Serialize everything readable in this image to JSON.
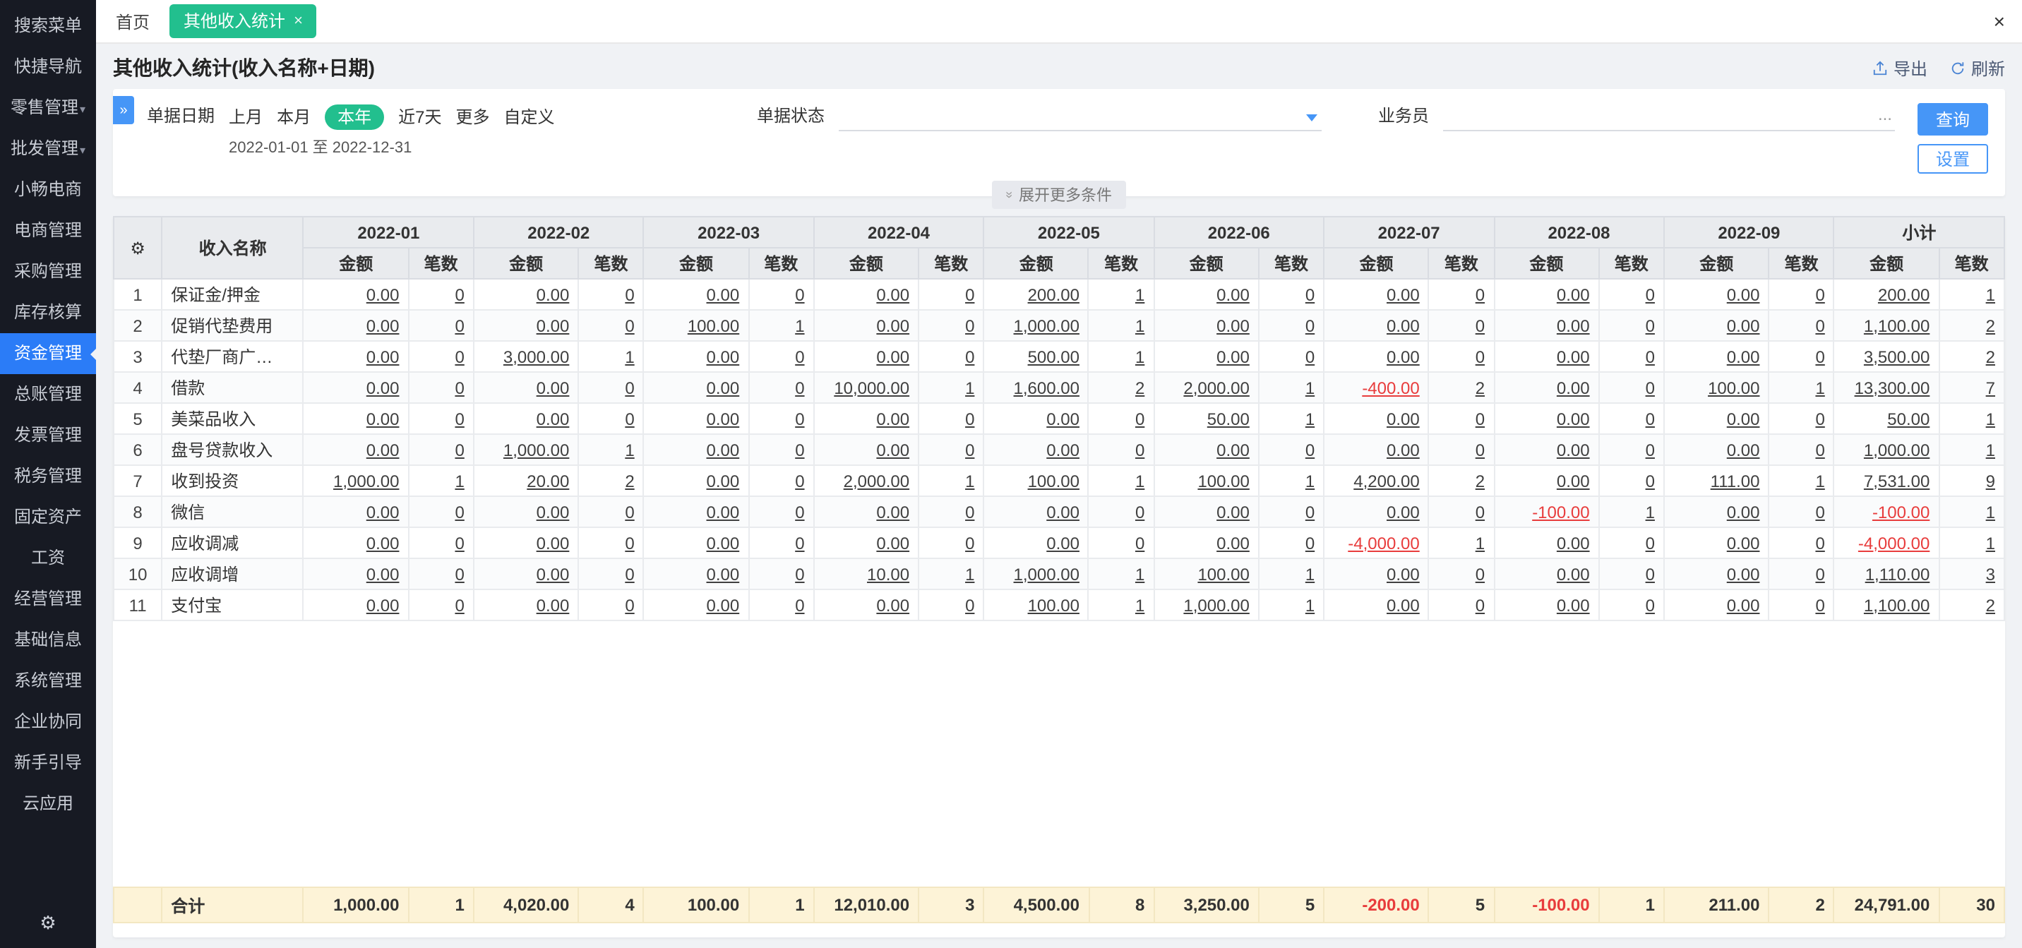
{
  "colors": {
    "accent_blue": "#4696f7",
    "brand_green": "#22bf8e",
    "negative_red": "#e83c3c",
    "totals_bg": "#fdf3d7",
    "sidebar_bg": "#171a23",
    "active_item_bg": "#2b7cf7"
  },
  "sidebar": {
    "items": [
      {
        "label": "搜索菜单"
      },
      {
        "label": "快捷导航"
      },
      {
        "label": "零售管理",
        "caret": true
      },
      {
        "label": "批发管理",
        "caret": true
      },
      {
        "label": "小畅电商"
      },
      {
        "label": "电商管理"
      },
      {
        "label": "采购管理"
      },
      {
        "label": "库存核算"
      },
      {
        "label": "资金管理",
        "active": true
      },
      {
        "label": "总账管理"
      },
      {
        "label": "发票管理"
      },
      {
        "label": "税务管理"
      },
      {
        "label": "固定资产"
      },
      {
        "label": "工资"
      },
      {
        "label": "经营管理"
      },
      {
        "label": "基础信息"
      },
      {
        "label": "系统管理"
      },
      {
        "label": "企业协同"
      },
      {
        "label": "新手引导"
      },
      {
        "label": "云应用"
      }
    ],
    "gear_icon": "⚙"
  },
  "topbar": {
    "home_tab": "首页",
    "active_tab": "其他收入统计",
    "tab_close": "×",
    "window_close": "×"
  },
  "page": {
    "title": "其他收入统计(收入名称+日期)",
    "export_label": "导出",
    "refresh_label": "刷新"
  },
  "filters": {
    "date_label": "单据日期",
    "date_options": [
      {
        "label": "上月"
      },
      {
        "label": "本月"
      },
      {
        "label": "本年",
        "selected": true
      },
      {
        "label": "近7天"
      },
      {
        "label": "更多"
      },
      {
        "label": "自定义"
      }
    ],
    "date_range": "2022-01-01 至 2022-12-31",
    "status_label": "单据状态",
    "salesman_label": "业务员",
    "ellipsis": "...",
    "more_label": "展开更多条件",
    "query_label": "查询",
    "settings_label": "设置"
  },
  "table": {
    "settings_icon": "⚙",
    "name_header": "收入名称",
    "amount_header": "金额",
    "count_header": "笔数",
    "months": [
      "2022-01",
      "2022-02",
      "2022-03",
      "2022-04",
      "2022-05",
      "2022-06",
      "2022-07",
      "2022-08",
      "2022-09",
      "小计"
    ],
    "rows": [
      {
        "name": "保证金/押金",
        "cells": [
          [
            "0.00",
            "0"
          ],
          [
            "0.00",
            "0"
          ],
          [
            "0.00",
            "0"
          ],
          [
            "0.00",
            "0"
          ],
          [
            "200.00",
            "1"
          ],
          [
            "0.00",
            "0"
          ],
          [
            "0.00",
            "0"
          ],
          [
            "0.00",
            "0"
          ],
          [
            "0.00",
            "0"
          ],
          [
            "200.00",
            "1"
          ]
        ]
      },
      {
        "name": "促销代垫费用",
        "cells": [
          [
            "0.00",
            "0"
          ],
          [
            "0.00",
            "0"
          ],
          [
            "100.00",
            "1"
          ],
          [
            "0.00",
            "0"
          ],
          [
            "1,000.00",
            "1"
          ],
          [
            "0.00",
            "0"
          ],
          [
            "0.00",
            "0"
          ],
          [
            "0.00",
            "0"
          ],
          [
            "0.00",
            "0"
          ],
          [
            "1,100.00",
            "2"
          ]
        ]
      },
      {
        "name": "代垫厂商广…",
        "cells": [
          [
            "0.00",
            "0"
          ],
          [
            "3,000.00",
            "1"
          ],
          [
            "0.00",
            "0"
          ],
          [
            "0.00",
            "0"
          ],
          [
            "500.00",
            "1"
          ],
          [
            "0.00",
            "0"
          ],
          [
            "0.00",
            "0"
          ],
          [
            "0.00",
            "0"
          ],
          [
            "0.00",
            "0"
          ],
          [
            "3,500.00",
            "2"
          ]
        ]
      },
      {
        "name": "借款",
        "cells": [
          [
            "0.00",
            "0"
          ],
          [
            "0.00",
            "0"
          ],
          [
            "0.00",
            "0"
          ],
          [
            "10,000.00",
            "1"
          ],
          [
            "1,600.00",
            "2"
          ],
          [
            "2,000.00",
            "1"
          ],
          [
            "-400.00",
            "2"
          ],
          [
            "0.00",
            "0"
          ],
          [
            "100.00",
            "1"
          ],
          [
            "13,300.00",
            "7"
          ]
        ]
      },
      {
        "name": "美菜品收入",
        "cells": [
          [
            "0.00",
            "0"
          ],
          [
            "0.00",
            "0"
          ],
          [
            "0.00",
            "0"
          ],
          [
            "0.00",
            "0"
          ],
          [
            "0.00",
            "0"
          ],
          [
            "50.00",
            "1"
          ],
          [
            "0.00",
            "0"
          ],
          [
            "0.00",
            "0"
          ],
          [
            "0.00",
            "0"
          ],
          [
            "50.00",
            "1"
          ]
        ]
      },
      {
        "name": "盘号贷款收入",
        "cells": [
          [
            "0.00",
            "0"
          ],
          [
            "1,000.00",
            "1"
          ],
          [
            "0.00",
            "0"
          ],
          [
            "0.00",
            "0"
          ],
          [
            "0.00",
            "0"
          ],
          [
            "0.00",
            "0"
          ],
          [
            "0.00",
            "0"
          ],
          [
            "0.00",
            "0"
          ],
          [
            "0.00",
            "0"
          ],
          [
            "1,000.00",
            "1"
          ]
        ]
      },
      {
        "name": "收到投资",
        "cells": [
          [
            "1,000.00",
            "1"
          ],
          [
            "20.00",
            "2"
          ],
          [
            "0.00",
            "0"
          ],
          [
            "2,000.00",
            "1"
          ],
          [
            "100.00",
            "1"
          ],
          [
            "100.00",
            "1"
          ],
          [
            "4,200.00",
            "2"
          ],
          [
            "0.00",
            "0"
          ],
          [
            "111.00",
            "1"
          ],
          [
            "7,531.00",
            "9"
          ]
        ]
      },
      {
        "name": "微信",
        "cells": [
          [
            "0.00",
            "0"
          ],
          [
            "0.00",
            "0"
          ],
          [
            "0.00",
            "0"
          ],
          [
            "0.00",
            "0"
          ],
          [
            "0.00",
            "0"
          ],
          [
            "0.00",
            "0"
          ],
          [
            "0.00",
            "0"
          ],
          [
            "-100.00",
            "1"
          ],
          [
            "0.00",
            "0"
          ],
          [
            "-100.00",
            "1"
          ]
        ]
      },
      {
        "name": "应收调减",
        "cells": [
          [
            "0.00",
            "0"
          ],
          [
            "0.00",
            "0"
          ],
          [
            "0.00",
            "0"
          ],
          [
            "0.00",
            "0"
          ],
          [
            "0.00",
            "0"
          ],
          [
            "0.00",
            "0"
          ],
          [
            "-4,000.00",
            "1"
          ],
          [
            "0.00",
            "0"
          ],
          [
            "0.00",
            "0"
          ],
          [
            "-4,000.00",
            "1"
          ]
        ]
      },
      {
        "name": "应收调增",
        "cells": [
          [
            "0.00",
            "0"
          ],
          [
            "0.00",
            "0"
          ],
          [
            "0.00",
            "0"
          ],
          [
            "10.00",
            "1"
          ],
          [
            "1,000.00",
            "1"
          ],
          [
            "100.00",
            "1"
          ],
          [
            "0.00",
            "0"
          ],
          [
            "0.00",
            "0"
          ],
          [
            "0.00",
            "0"
          ],
          [
            "1,110.00",
            "3"
          ]
        ]
      },
      {
        "name": "支付宝",
        "cells": [
          [
            "0.00",
            "0"
          ],
          [
            "0.00",
            "0"
          ],
          [
            "0.00",
            "0"
          ],
          [
            "0.00",
            "0"
          ],
          [
            "100.00",
            "1"
          ],
          [
            "1,000.00",
            "1"
          ],
          [
            "0.00",
            "0"
          ],
          [
            "0.00",
            "0"
          ],
          [
            "0.00",
            "0"
          ],
          [
            "1,100.00",
            "2"
          ]
        ]
      }
    ],
    "total_label": "合计",
    "totals": [
      [
        "1,000.00",
        "1"
      ],
      [
        "4,020.00",
        "4"
      ],
      [
        "100.00",
        "1"
      ],
      [
        "12,010.00",
        "3"
      ],
      [
        "4,500.00",
        "8"
      ],
      [
        "3,250.00",
        "5"
      ],
      [
        "-200.00",
        "5"
      ],
      [
        "-100.00",
        "1"
      ],
      [
        "211.00",
        "2"
      ],
      [
        "24,791.00",
        "30"
      ]
    ]
  }
}
